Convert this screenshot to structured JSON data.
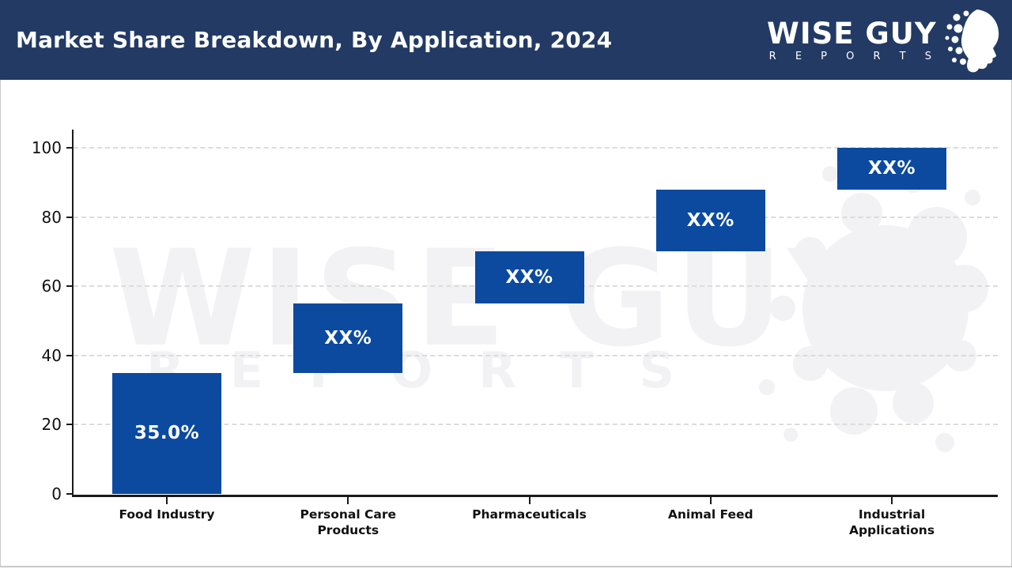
{
  "header": {
    "title": "Market Share Breakdown, By Application, 2024",
    "logo": {
      "name": "WISE GUY",
      "tagline": "R E P O R T S",
      "icon": "dotted-head-profile"
    }
  },
  "watermark": {
    "line1": "WISE GUY",
    "line2": "REPORTS"
  },
  "chart_data": {
    "type": "bar",
    "subtype": "waterfall",
    "title": "Market Share Breakdown, By Application, 2024",
    "categories": [
      "Food Industry",
      "Personal Care\nProducts",
      "Pharmaceuticals",
      "Animal Feed",
      "Industrial\nApplications"
    ],
    "bars": [
      {
        "category": "Food Industry",
        "start": 0,
        "end": 35,
        "label": "35.0%"
      },
      {
        "category": "Personal Care Products",
        "start": 35,
        "end": 55,
        "label": "XX%"
      },
      {
        "category": "Pharmaceuticals",
        "start": 55,
        "end": 70,
        "label": "XX%"
      },
      {
        "category": "Animal Feed",
        "start": 70,
        "end": 88,
        "label": "XX%"
      },
      {
        "category": "Industrial Applications",
        "start": 88,
        "end": 100,
        "label": "XX%"
      }
    ],
    "yticks": [
      0,
      20,
      40,
      60,
      80,
      100
    ],
    "ylim": [
      0,
      105
    ],
    "xlabel": "",
    "ylabel": "",
    "grid": "horizontal-dashed",
    "legend": "none",
    "bar_color": "#0c4aa0",
    "bar_label_color": "#ffffff",
    "axis_color": "#1a1a1a",
    "grid_color": "#dcdcdc"
  },
  "colors": {
    "header_bg": "#223a64",
    "header_text": "#ffffff",
    "bar": "#0c4aa0",
    "watermark": "#f2f2f4",
    "frame_border": "#c9c9c9",
    "background": "#ffffff"
  }
}
